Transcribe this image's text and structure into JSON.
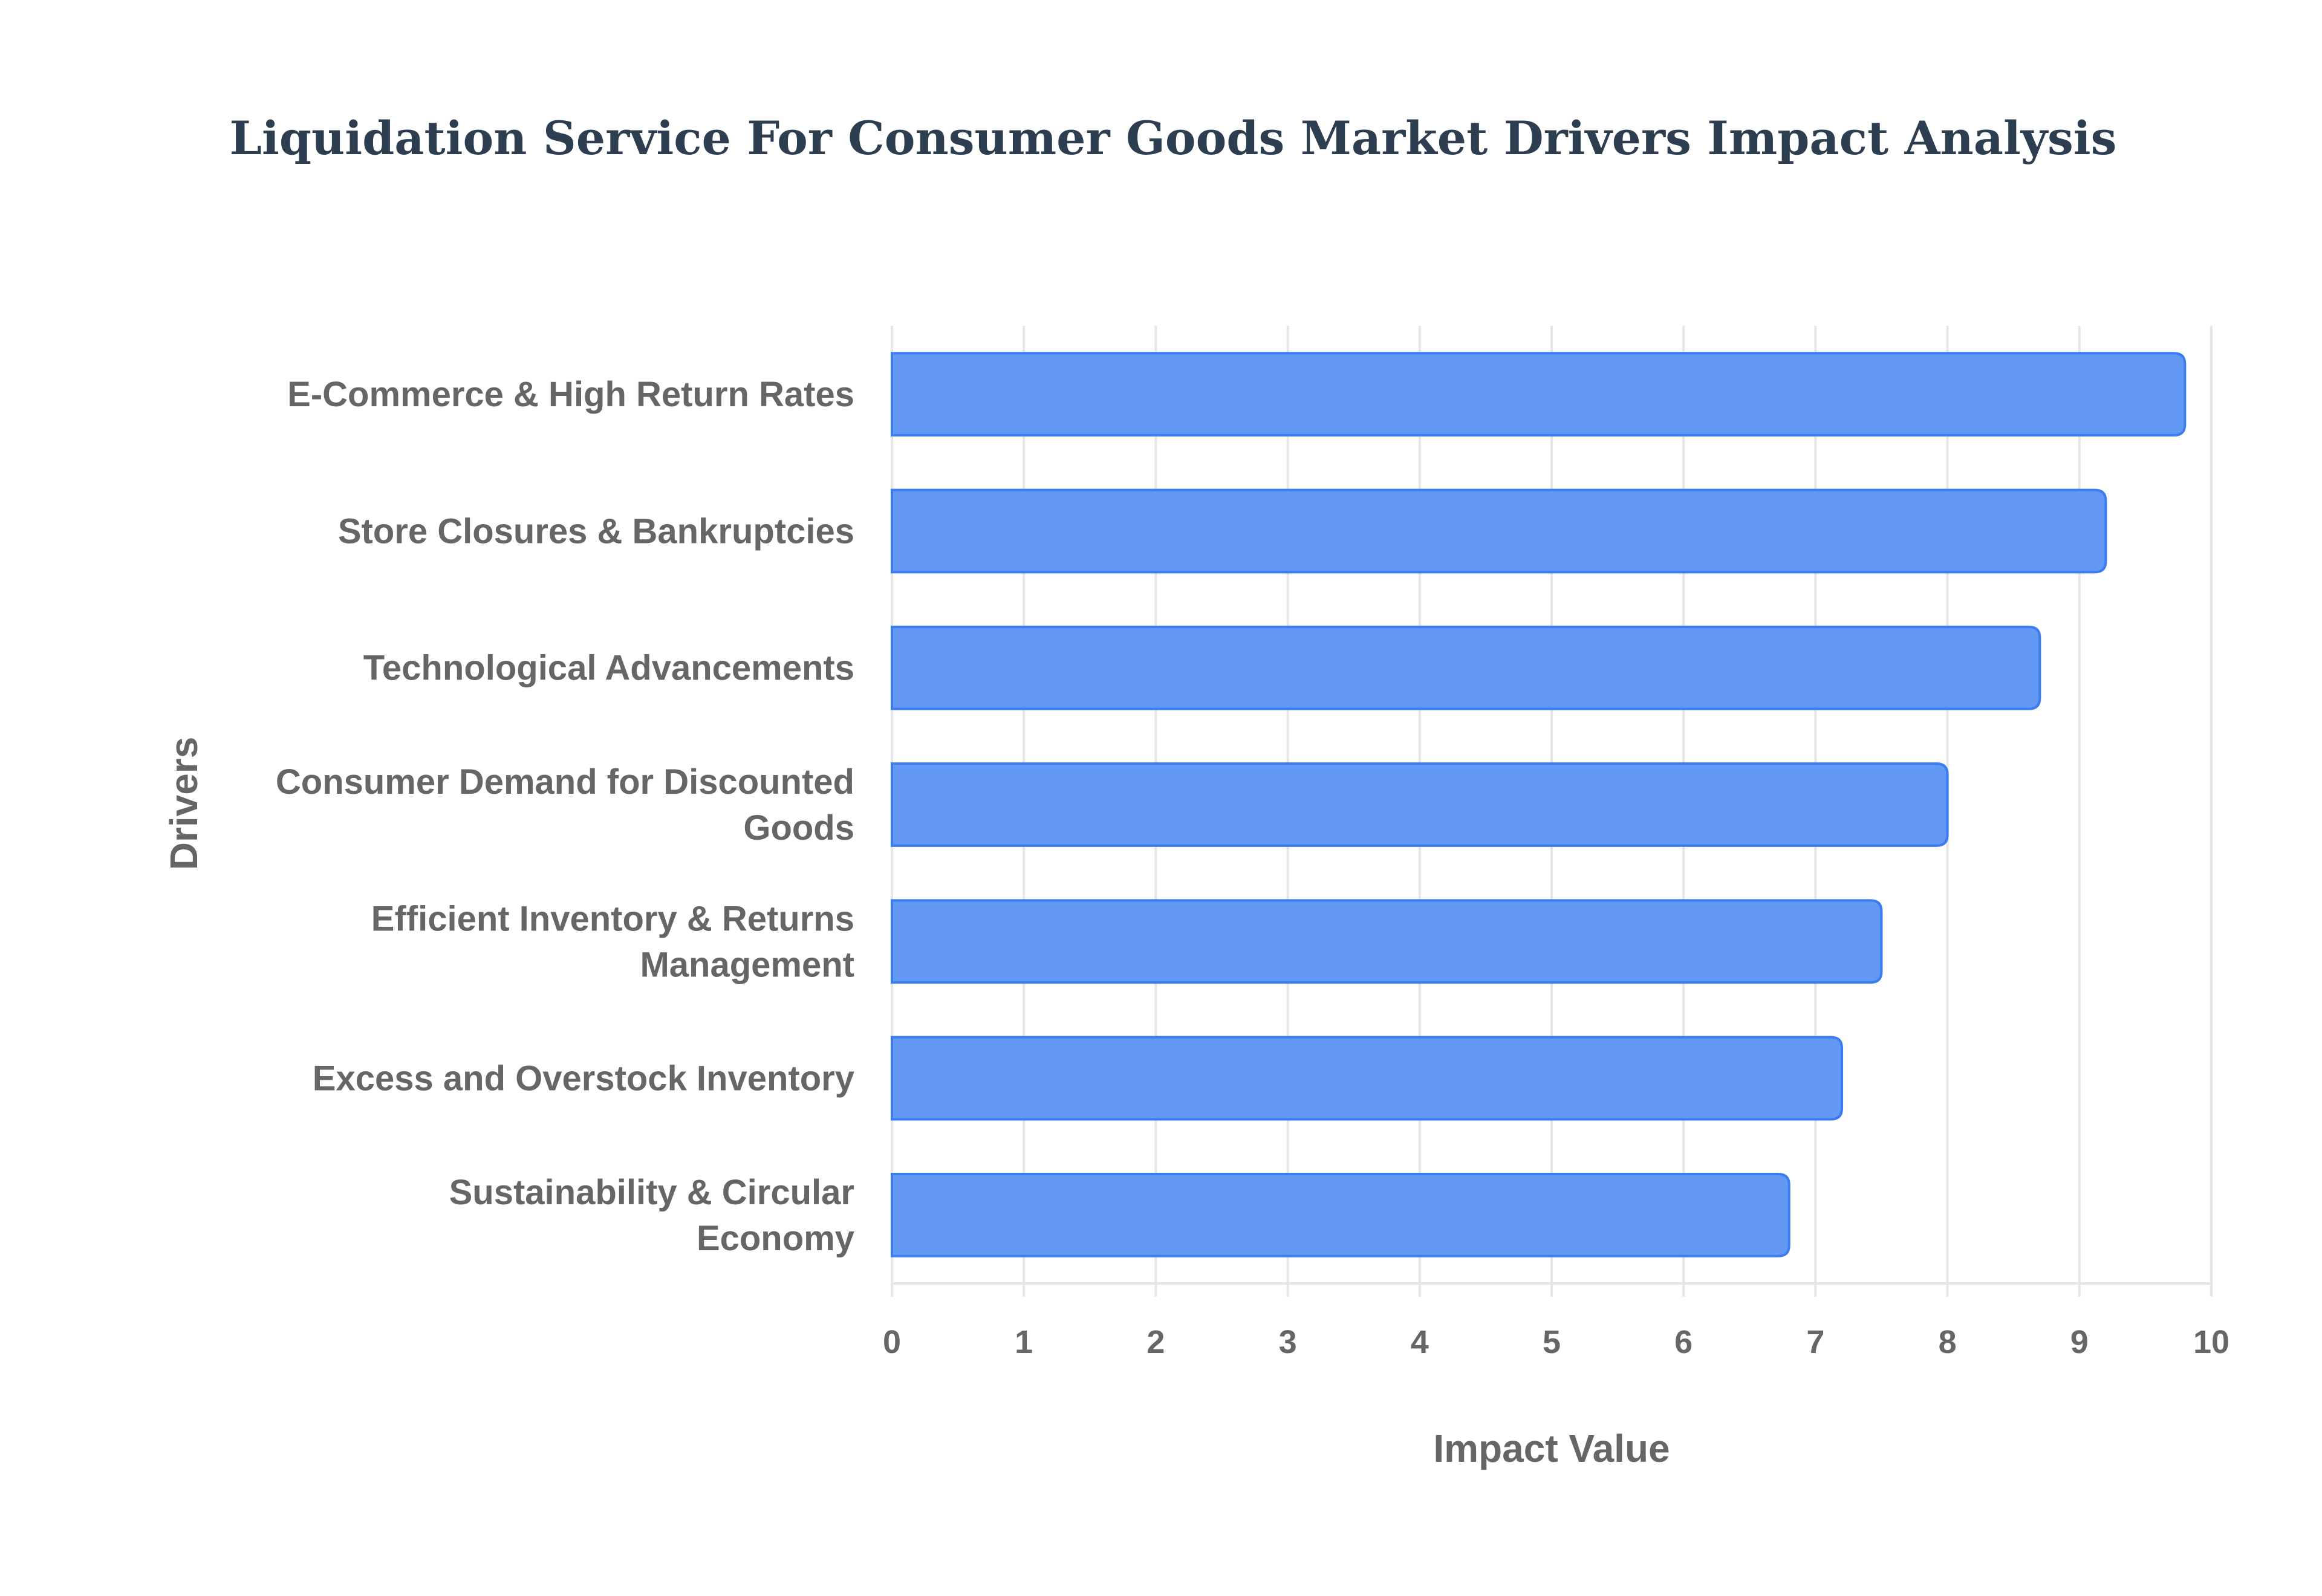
{
  "chart_data": {
    "type": "bar",
    "orientation": "horizontal",
    "title": "Liquidation Service For Consumer Goods Market Drivers Impact Analysis",
    "xlabel": "Impact Value",
    "ylabel": "Drivers",
    "xlim": [
      0,
      10
    ],
    "xticks": [
      "0",
      "1",
      "2",
      "3",
      "4",
      "5",
      "6",
      "7",
      "8",
      "9",
      "10"
    ],
    "grid": true,
    "categories": [
      [
        "E-Commerce & High Return Rates"
      ],
      [
        "Store Closures & Bankruptcies"
      ],
      [
        "Technological Advancements"
      ],
      [
        "Consumer Demand for Discounted",
        "Goods"
      ],
      [
        "Efficient Inventory & Returns",
        "Management"
      ],
      [
        "Excess and Overstock Inventory"
      ],
      [
        "Sustainability & Circular",
        "Economy"
      ]
    ],
    "values": [
      9.8,
      9.2,
      8.7,
      8.0,
      7.5,
      7.2,
      6.8
    ],
    "bar_color": "#6399f5",
    "bar_border_color": "#3b7cf0"
  }
}
